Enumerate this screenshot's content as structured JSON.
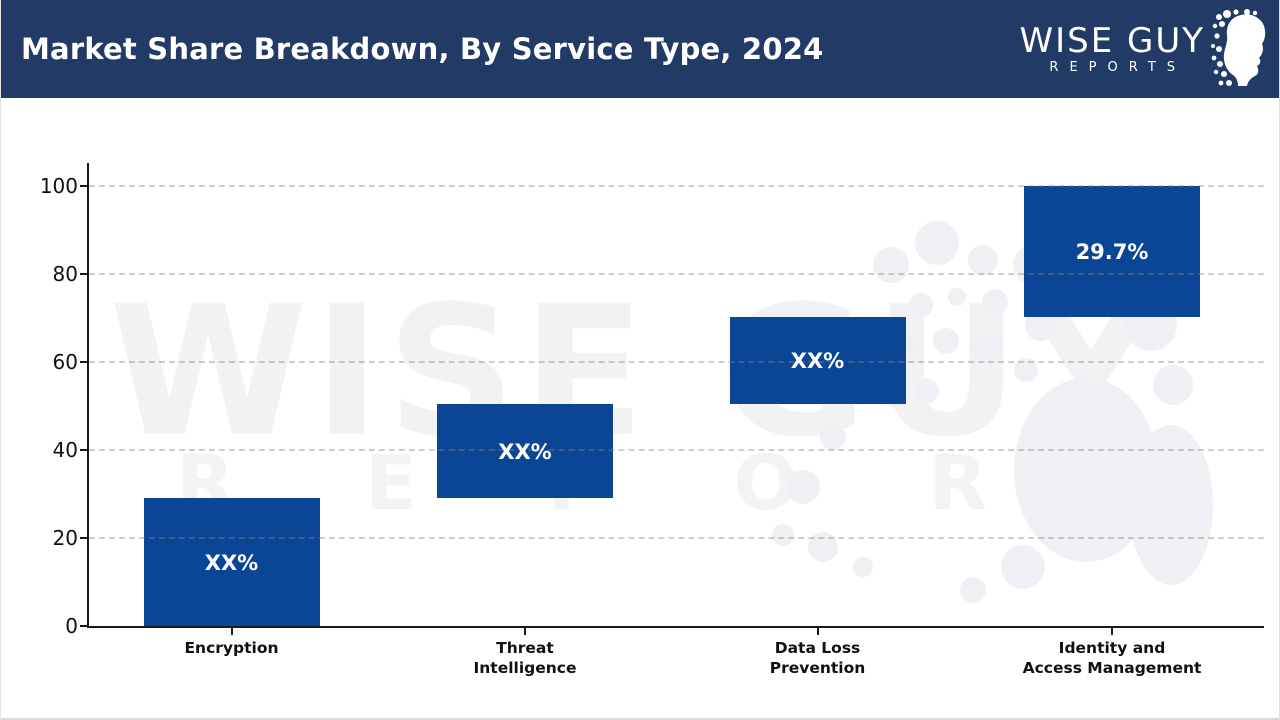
{
  "header": {
    "title": "Market Share Breakdown, By Service Type, 2024",
    "logo": {
      "brand": "WISE GUY",
      "reports": "REPORTS"
    }
  },
  "watermark": {
    "brand": "WISE GUY",
    "reports": "R E P O R T S"
  },
  "chart_data": {
    "type": "bar",
    "subtype": "waterfall",
    "title": "Market Share Breakdown, By Service Type, 2024",
    "xlabel": "",
    "ylabel": "",
    "ylim": [
      0,
      105
    ],
    "yticks": [
      0,
      20,
      40,
      60,
      80,
      100
    ],
    "grid": "horizontal-dashed",
    "legend": "none",
    "bar_color": "#0b4596",
    "value_label_color": "#ffffff",
    "categories": [
      "Encryption",
      "Threat Intelligence",
      "Data Loss Prevention",
      "Identity and Access Management"
    ],
    "category_lines": [
      [
        "Encryption"
      ],
      [
        "Threat",
        "Intelligence"
      ],
      [
        "Data Loss",
        "Prevention"
      ],
      [
        "Identity and",
        "Access Management"
      ]
    ],
    "segments": [
      {
        "category": "Encryption",
        "start": 0,
        "end": 29.0,
        "value": 29.0,
        "label": "XX%"
      },
      {
        "category": "Threat Intelligence",
        "start": 29.0,
        "end": 50.5,
        "value": 21.5,
        "label": "XX%"
      },
      {
        "category": "Data Loss Prevention",
        "start": 50.5,
        "end": 70.3,
        "value": 19.8,
        "label": "XX%"
      },
      {
        "category": "Identity and Access Management",
        "start": 70.3,
        "end": 100.0,
        "value": 29.7,
        "label": "29.7%"
      }
    ]
  }
}
